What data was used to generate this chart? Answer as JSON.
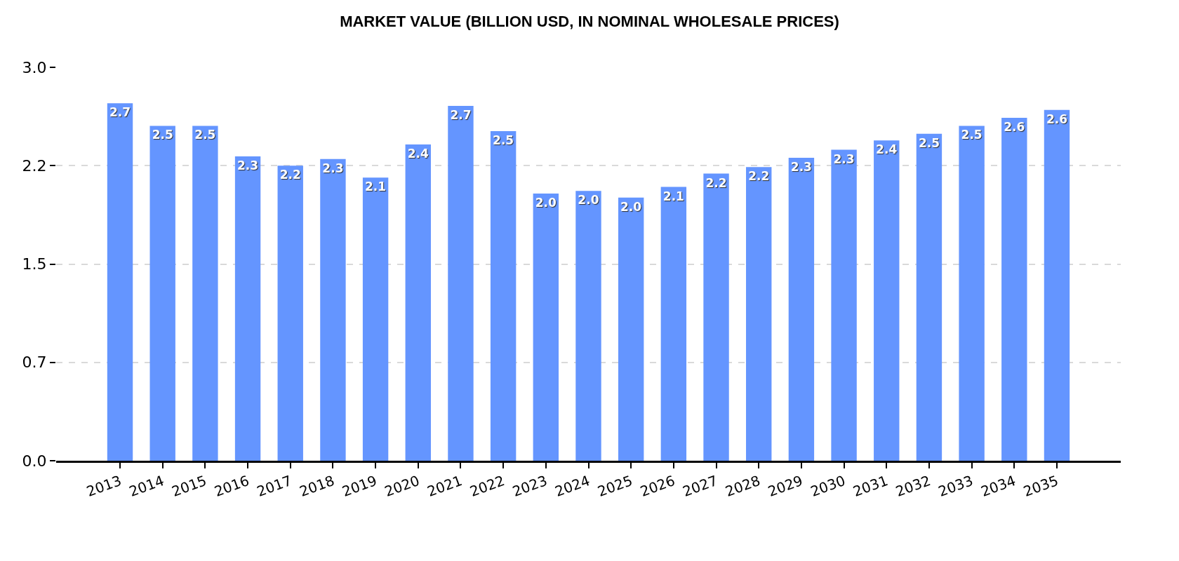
{
  "chart_data": {
    "type": "bar",
    "title": "MARKET VALUE (BILLION USD, IN NOMINAL WHOLESALE PRICES)",
    "categories": [
      "2013",
      "2014",
      "2015",
      "2016",
      "2017",
      "2018",
      "2019",
      "2020",
      "2021",
      "2022",
      "2023",
      "2024",
      "2025",
      "2026",
      "2027",
      "2028",
      "2029",
      "2030",
      "2031",
      "2032",
      "2033",
      "2034",
      "2035"
    ],
    "values": [
      2.69,
      2.52,
      2.52,
      2.29,
      2.22,
      2.27,
      2.13,
      2.38,
      2.67,
      2.48,
      2.01,
      2.03,
      1.98,
      2.06,
      2.16,
      2.21,
      2.28,
      2.34,
      2.41,
      2.46,
      2.52,
      2.58,
      2.64
    ],
    "value_labels": [
      "2.7",
      "2.5",
      "2.5",
      "2.3",
      "2.2",
      "2.3",
      "2.1",
      "2.4",
      "2.7",
      "2.5",
      "2.0",
      "2.0",
      "2.0",
      "2.1",
      "2.2",
      "2.2",
      "2.3",
      "2.3",
      "2.4",
      "2.5",
      "2.5",
      "2.6",
      "2.6"
    ],
    "color": "#6495ff",
    "ylim": [
      0,
      2.96
    ],
    "yticks": [
      {
        "value": 0,
        "label": "0.0"
      },
      {
        "value": 0.74,
        "label": "0.7"
      },
      {
        "value": 1.48,
        "label": "1.5"
      },
      {
        "value": 2.22,
        "label": "2.2"
      },
      {
        "value": 2.96,
        "label": "3.0"
      }
    ],
    "grid": "y"
  }
}
